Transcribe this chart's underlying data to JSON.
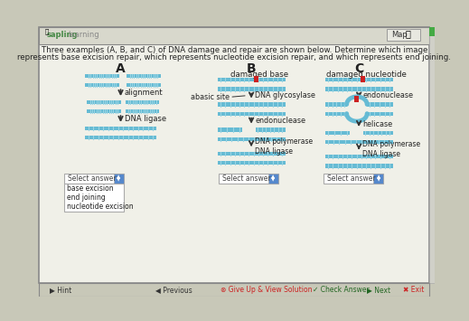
{
  "bg_color": "#c8c8b8",
  "outer_border": "#888888",
  "content_bg": "#f0f0e8",
  "header_bg": "#d8d8cc",
  "footer_bg": "#c8c8b8",
  "dna_color": "#66bbd4",
  "dna_tick": "#99d4e4",
  "damaged_color": "#cc2222",
  "arrow_color": "#333333",
  "text_color": "#222222",
  "title1": "Three examples (A, B, and C) of DNA damage and repair are shown below. Determine which image",
  "title2": "represents base excision repair, which represents nucleotide excision repair, and which represents end joining.",
  "label_A": "A",
  "label_B": "B",
  "label_C": "C",
  "col_A": 110,
  "col_B": 280,
  "col_C": 420,
  "select_bg": "#ffffff",
  "select_border": "#aaaaaa",
  "select_btn": "#5588cc",
  "footer_text_color": "#333333",
  "hint_color": "#333333",
  "prev_color": "#333333",
  "giveup_color": "#cc2222",
  "check_color": "#226622",
  "next_color": "#226622",
  "exit_color": "#cc2222"
}
